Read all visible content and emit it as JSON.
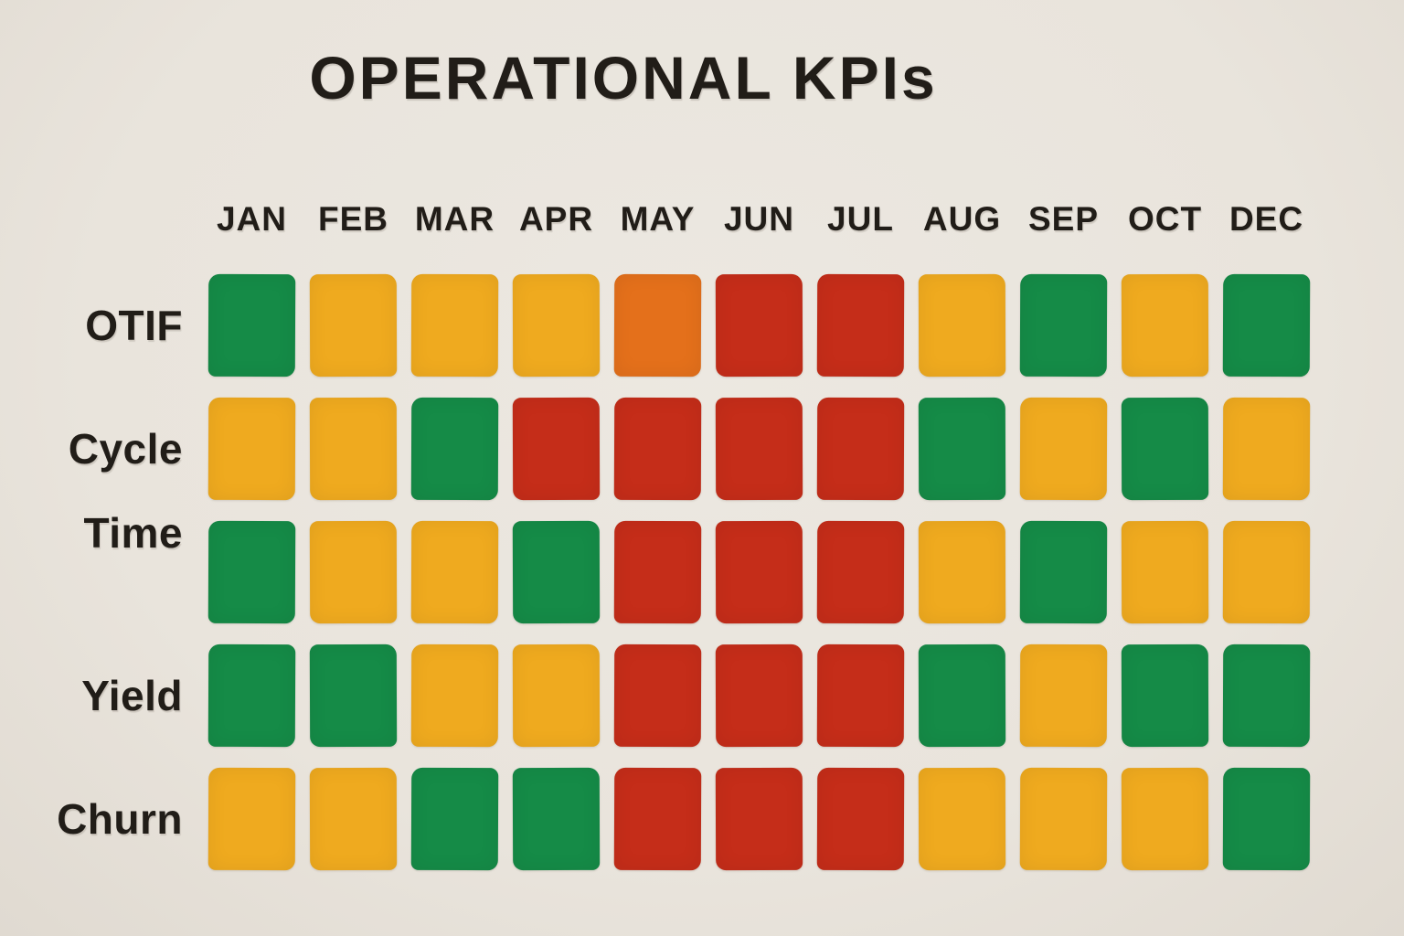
{
  "title": "OPERATIONAL KPIs",
  "months": [
    "JAN",
    "FEB",
    "MAR",
    "APR",
    "MAY",
    "JUN",
    "JUL",
    "AUG",
    "SEP",
    "OCT",
    "DEC"
  ],
  "colors": {
    "green": "#158b47",
    "yellow": "#efaa1f",
    "orange": "#e4701b",
    "red": "#c52d19",
    "background": "#e9e4dc",
    "text": "#211d18"
  },
  "rows": [
    {
      "label": "OTIF",
      "cells": [
        "green",
        "yellow",
        "yellow",
        "yellow",
        "orange",
        "red",
        "red",
        "yellow",
        "green",
        "yellow",
        "green"
      ]
    },
    {
      "label": "Cycle",
      "cells": [
        "yellow",
        "yellow",
        "green",
        "red",
        "red",
        "red",
        "red",
        "green",
        "yellow",
        "green",
        "yellow"
      ]
    },
    {
      "label": "Time",
      "cells": [
        "green",
        "yellow",
        "yellow",
        "green",
        "red",
        "red",
        "red",
        "yellow",
        "green",
        "yellow",
        "yellow"
      ]
    },
    {
      "label": "Yield",
      "cells": [
        "green",
        "green",
        "yellow",
        "yellow",
        "red",
        "red",
        "red",
        "green",
        "yellow",
        "green",
        "green"
      ]
    },
    {
      "label": "Churn",
      "cells": [
        "yellow",
        "yellow",
        "green",
        "green",
        "red",
        "red",
        "red",
        "yellow",
        "yellow",
        "yellow",
        "green"
      ]
    }
  ],
  "chart_data": {
    "type": "heatmap",
    "title": "OPERATIONAL KPIs",
    "x_categories": [
      "JAN",
      "FEB",
      "MAR",
      "APR",
      "MAY",
      "JUN",
      "JUL",
      "AUG",
      "SEP",
      "OCT",
      "DEC"
    ],
    "y_categories": [
      "OTIF",
      "Cycle",
      "Time",
      "Yield",
      "Churn"
    ],
    "values": [
      [
        "green",
        "yellow",
        "yellow",
        "yellow",
        "orange",
        "red",
        "red",
        "yellow",
        "green",
        "yellow",
        "green"
      ],
      [
        "yellow",
        "yellow",
        "green",
        "red",
        "red",
        "red",
        "red",
        "green",
        "yellow",
        "green",
        "yellow"
      ],
      [
        "green",
        "yellow",
        "yellow",
        "green",
        "red",
        "red",
        "red",
        "yellow",
        "green",
        "yellow",
        "yellow"
      ],
      [
        "green",
        "green",
        "yellow",
        "yellow",
        "red",
        "red",
        "red",
        "green",
        "yellow",
        "green",
        "green"
      ],
      [
        "yellow",
        "yellow",
        "green",
        "green",
        "red",
        "red",
        "red",
        "yellow",
        "yellow",
        "yellow",
        "green"
      ]
    ],
    "color_map": {
      "green": "#158b47",
      "yellow": "#efaa1f",
      "orange": "#e4701b",
      "red": "#c52d19"
    },
    "legend_position": "none",
    "grid": false
  }
}
